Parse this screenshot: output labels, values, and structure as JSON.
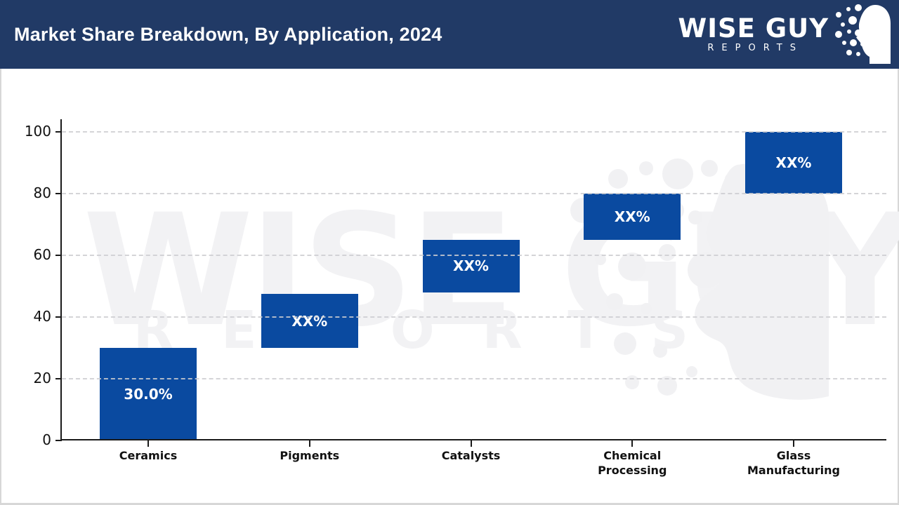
{
  "header": {
    "title": "Market Share Breakdown, By Application, 2024",
    "background_color": "#213a66",
    "logo": {
      "brand": "WISE GUY",
      "sub": "REPORTS"
    }
  },
  "watermark": {
    "brand": "WISE GUY",
    "sub": "REPORTS"
  },
  "chart_data": {
    "type": "bar",
    "subtype": "waterfall-floating-bars",
    "title": "Market Share Breakdown, By Application, 2024",
    "xlabel": "",
    "ylabel": "",
    "ylim": [
      0,
      100
    ],
    "yticks": [
      "0",
      "20",
      "40",
      "60",
      "80",
      "100"
    ],
    "ytick_values": [
      0,
      20,
      40,
      60,
      80,
      100
    ],
    "grid": true,
    "grid_style": "dashed",
    "legend": false,
    "bar_color": "#0a4aa0",
    "label_color": "#ffffff",
    "categories": [
      "Ceramics",
      "Pigments",
      "Catalysts",
      "Chemical Processing",
      "Glass Manufacturing"
    ],
    "series": [
      {
        "name": "Market Share",
        "segments": [
          {
            "category": "Ceramics",
            "start": 0,
            "end": 30,
            "label": "30.0%"
          },
          {
            "category": "Pigments",
            "start": 30,
            "end": 47.5,
            "label": "XX%"
          },
          {
            "category": "Catalysts",
            "start": 48,
            "end": 65,
            "label": "XX%"
          },
          {
            "category": "Chemical Processing",
            "start": 65,
            "end": 80,
            "label": "XX%"
          },
          {
            "category": "Glass Manufacturing",
            "start": 80,
            "end": 100,
            "label": "XX%"
          }
        ]
      }
    ]
  }
}
